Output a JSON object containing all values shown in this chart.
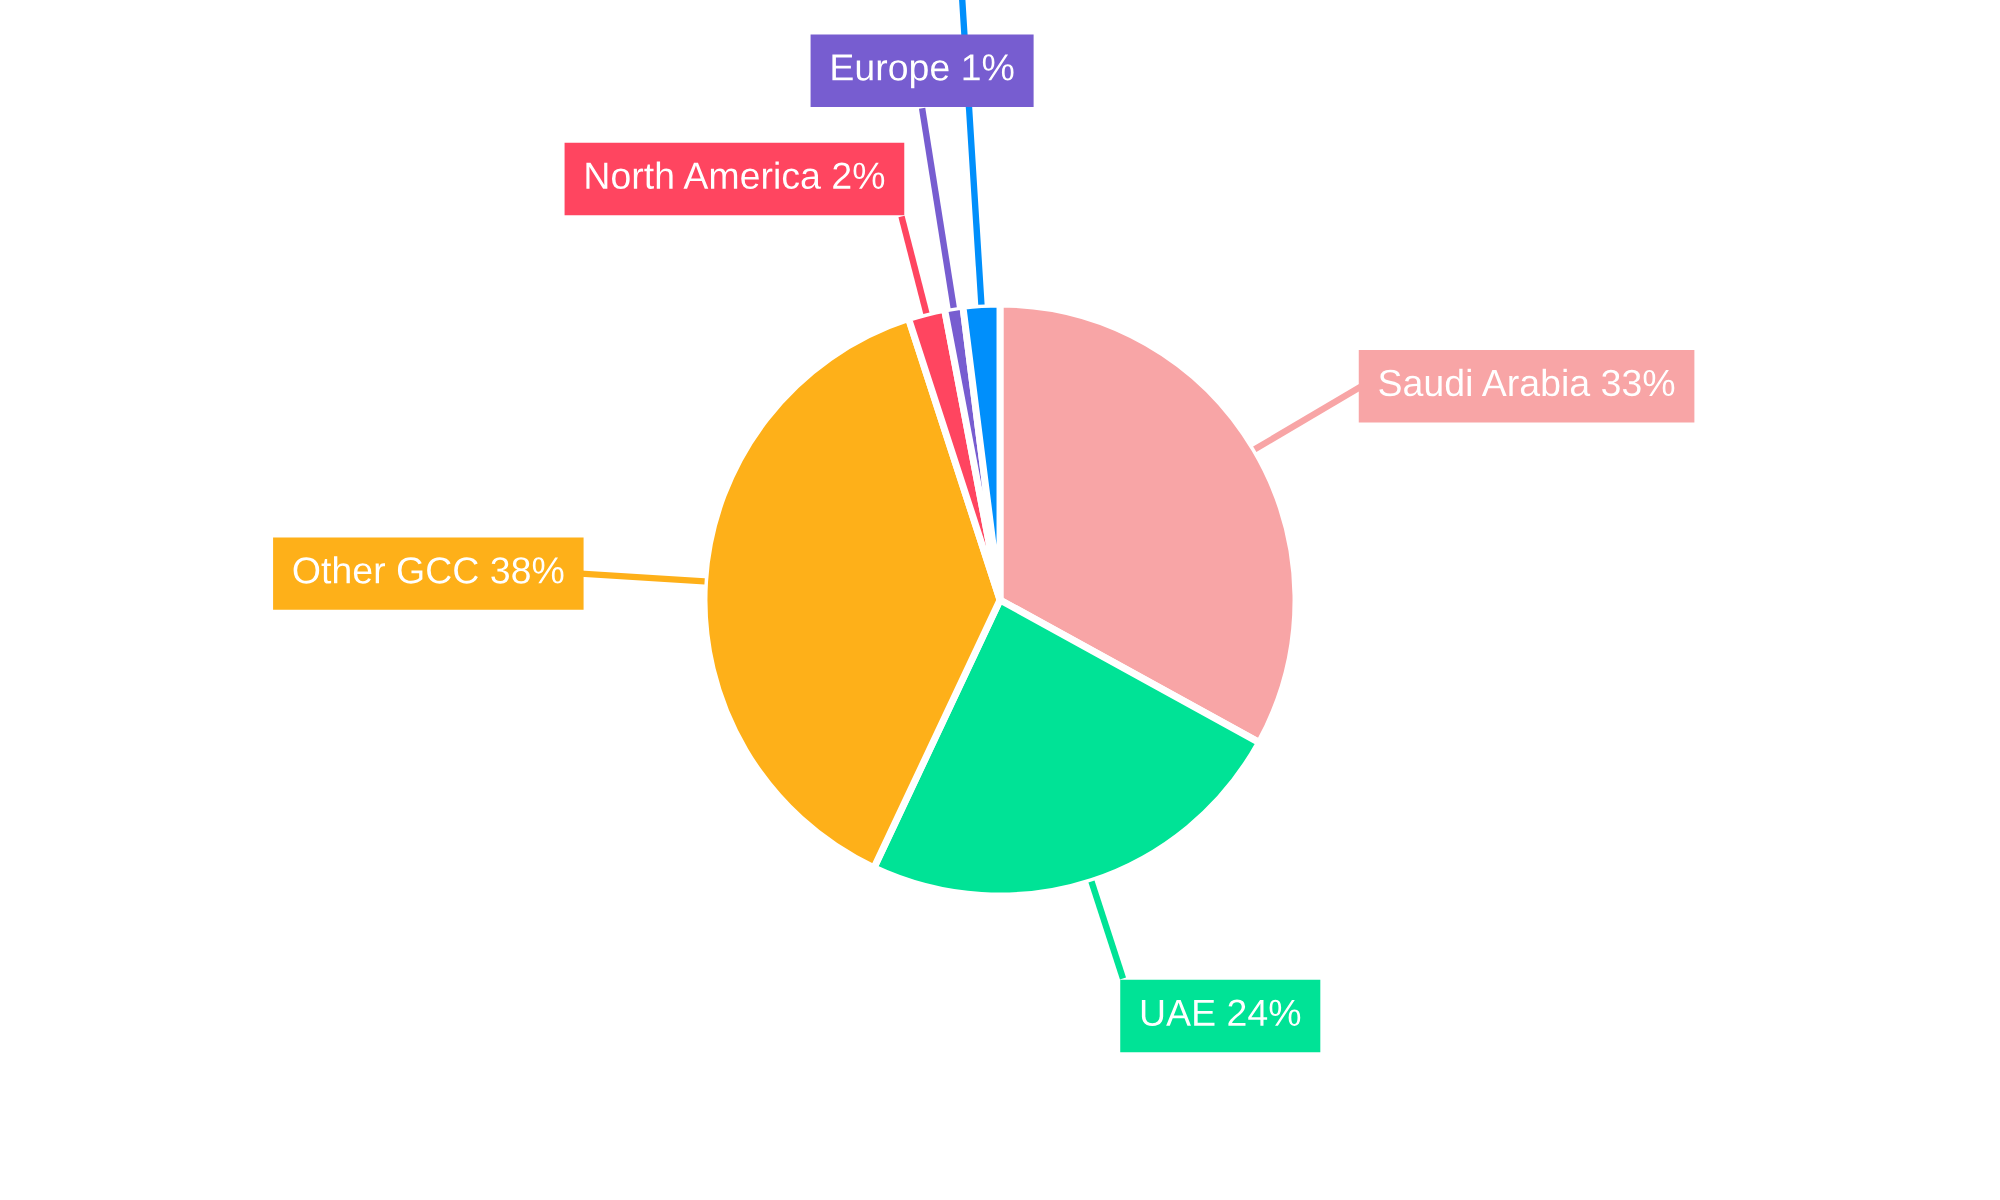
{
  "chart_data": {
    "type": "pie",
    "categories": [
      "Saudi Arabia",
      "UAE",
      "Other GCC",
      "North America",
      "Europe",
      null
    ],
    "values": [
      33,
      24,
      38,
      2,
      1,
      2
    ],
    "colors": [
      "#f8a5a6",
      "#00e396",
      "#feb019",
      "#ff4560",
      "#775dd0",
      "#008ffb"
    ],
    "value_labels": [
      "33%",
      "24%",
      "38%",
      "2%",
      "1%",
      null
    ]
  }
}
